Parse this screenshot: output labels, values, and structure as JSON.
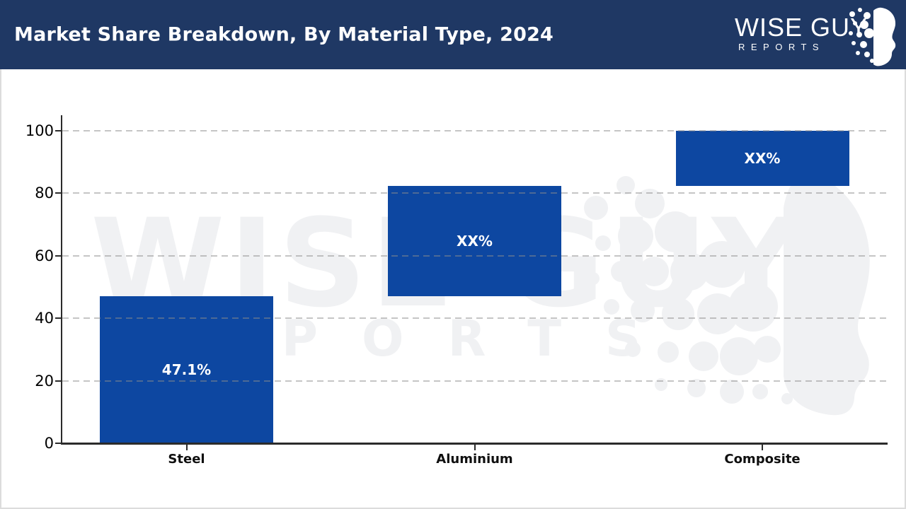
{
  "header": {
    "title": "Market Share Breakdown, By Material Type, 2024",
    "logo": {
      "line1": "WISE GUY",
      "line2": "REPORTS"
    }
  },
  "watermark": {
    "line1": "WISE GUY",
    "line2": "REPORTS"
  },
  "chart_data": {
    "type": "bar",
    "variant": "stacked_waterfall",
    "title": "Market Share Breakdown, By Material Type, 2024",
    "categories": [
      "Steel",
      "Aluminium",
      "Composite"
    ],
    "segments": [
      {
        "category": "Steel",
        "start": 0,
        "end": 47.1,
        "label": "47.1%"
      },
      {
        "category": "Aluminium",
        "start": 47.1,
        "end": 82.3,
        "label": "XX%"
      },
      {
        "category": "Composite",
        "start": 82.3,
        "end": 100,
        "label": "XX%"
      }
    ],
    "ylim": [
      0,
      100
    ],
    "yticks": [
      0,
      20,
      40,
      60,
      80,
      100
    ],
    "xlabel": "",
    "ylabel": "",
    "legend": "none",
    "grid": {
      "axis": "y",
      "style": "dashed",
      "on": true
    },
    "bar_color": "#0d47a1",
    "bar_label_color": "#ffffff",
    "header_color": "#1f3864",
    "background_color": "#ffffff",
    "watermark_color": "#f0f1f3"
  }
}
